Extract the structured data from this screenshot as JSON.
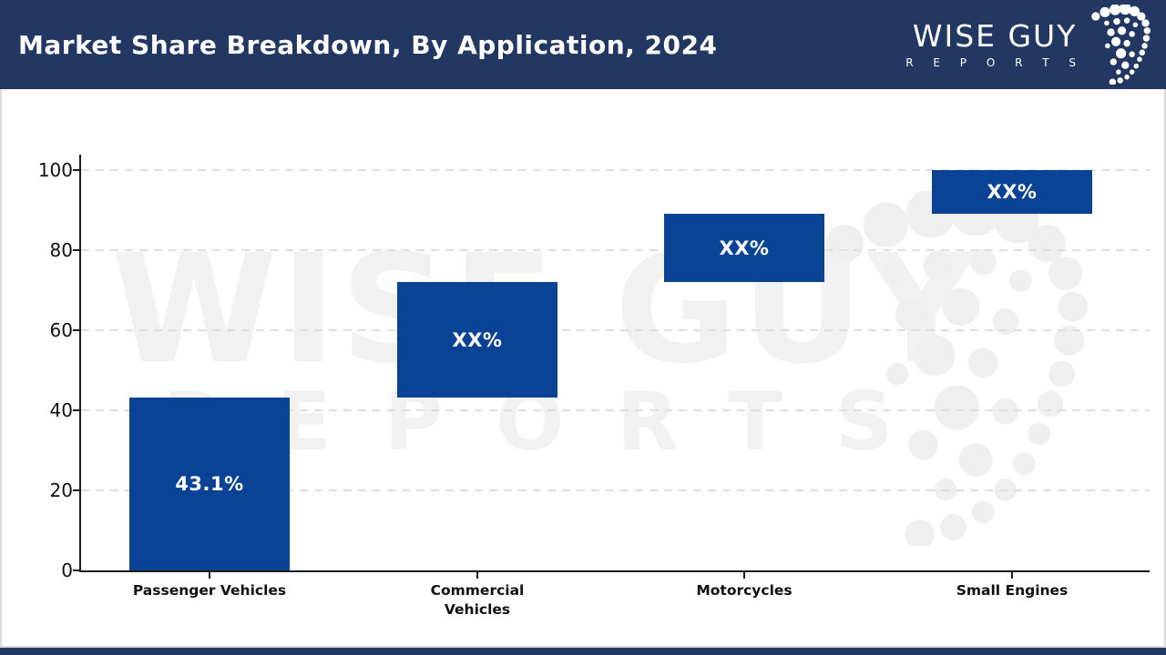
{
  "header": {
    "title": "Market Share Breakdown, By Application, 2024",
    "logo": {
      "wordmark": "WISE GUY",
      "subtext": "R E P O R T S"
    }
  },
  "watermark": {
    "line1": "WISE GUY",
    "line2": "REPORTS"
  },
  "colors": {
    "header_bg": "#223862",
    "footer_bg": "#223862",
    "bar_fill": "#0a4296",
    "bar_label": "#ffffff",
    "grid": "#dedede",
    "axis": "#1c1c1c",
    "watermark": "#f1f1f1"
  },
  "chart_data": {
    "type": "bar",
    "subtype": "waterfall",
    "title": "Market Share Breakdown, By Application, 2024",
    "categories": [
      "Passenger Vehicles",
      "Commercial\nVehicles",
      "Motorcycles",
      "Small Engines"
    ],
    "segments": [
      {
        "category": "Passenger Vehicles",
        "start": 0,
        "end": 43.1,
        "value_pct": 43.1,
        "label": "43.1%"
      },
      {
        "category": "Commercial Vehicles",
        "start": 43.1,
        "end": 72.0,
        "value_pct": 28.9,
        "label": "XX%"
      },
      {
        "category": "Motorcycles",
        "start": 72.0,
        "end": 89.0,
        "value_pct": 17.0,
        "label": "XX%"
      },
      {
        "category": "Small Engines",
        "start": 89.0,
        "end": 100.0,
        "value_pct": 11.0,
        "label": "XX%"
      }
    ],
    "xlabel": "",
    "ylabel": "",
    "ylim": [
      0,
      100
    ],
    "yticks": [
      0,
      20,
      40,
      60,
      80,
      100
    ],
    "grid": "horizontal-dashed",
    "legend": "none",
    "note": "Values for Commercial Vehicles, Motorcycles and Small Engines are masked as XX% in the figure; segment extents estimated from the axis."
  }
}
